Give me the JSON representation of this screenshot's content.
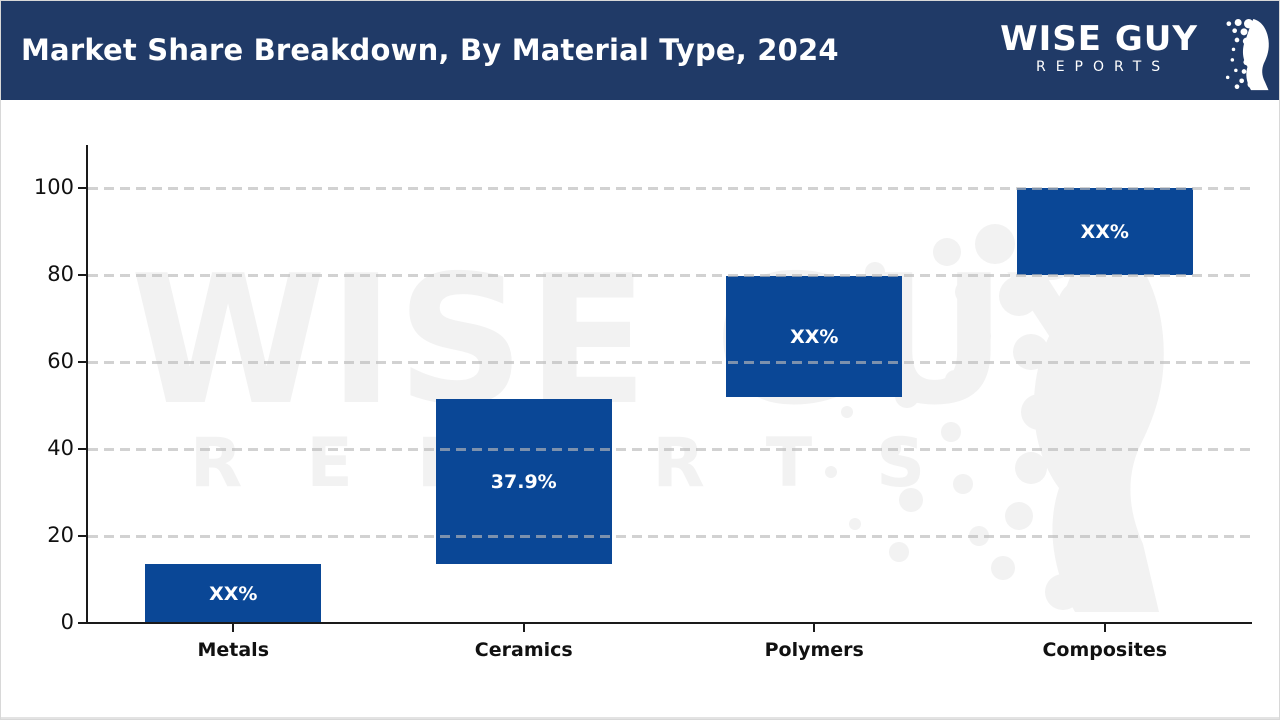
{
  "header": {
    "title": "Market Share Breakdown, By Material Type, 2024",
    "logo": {
      "line1": "WISE GUY",
      "line2": "REPORTS",
      "head_icon": "dotted-face-profile"
    }
  },
  "watermark": {
    "line1": "WISE GUY",
    "line2": "REPORTS"
  },
  "chart_data": {
    "type": "bar",
    "subtype": "waterfall",
    "title": "Market Share Breakdown, By Material Type, 2024",
    "xlabel": "",
    "ylabel": "",
    "categories": [
      "Metals",
      "Ceramics",
      "Polymers",
      "Composites"
    ],
    "segments": [
      {
        "category": "Metals",
        "base": 0,
        "top": 13.5,
        "label": "XX%"
      },
      {
        "category": "Ceramics",
        "base": 13.5,
        "top": 51.4,
        "label": "37.9%"
      },
      {
        "category": "Polymers",
        "base": 52.0,
        "top": 79.7,
        "label": "XX%"
      },
      {
        "category": "Composites",
        "base": 80.0,
        "top": 100.0,
        "label": "XX%"
      }
    ],
    "yticks": [
      0,
      20,
      40,
      60,
      80,
      100
    ],
    "ylim": [
      0,
      110
    ],
    "grid": true,
    "grid_style": "dashed",
    "legend": "none",
    "bar_color": "#0a4796",
    "bar_label_color": "#ffffff",
    "grid_color": "#c9c9c9",
    "axis_color": "#1a1a1a",
    "header_color": "#203a67",
    "watermark_color": "#f2f2f2"
  }
}
